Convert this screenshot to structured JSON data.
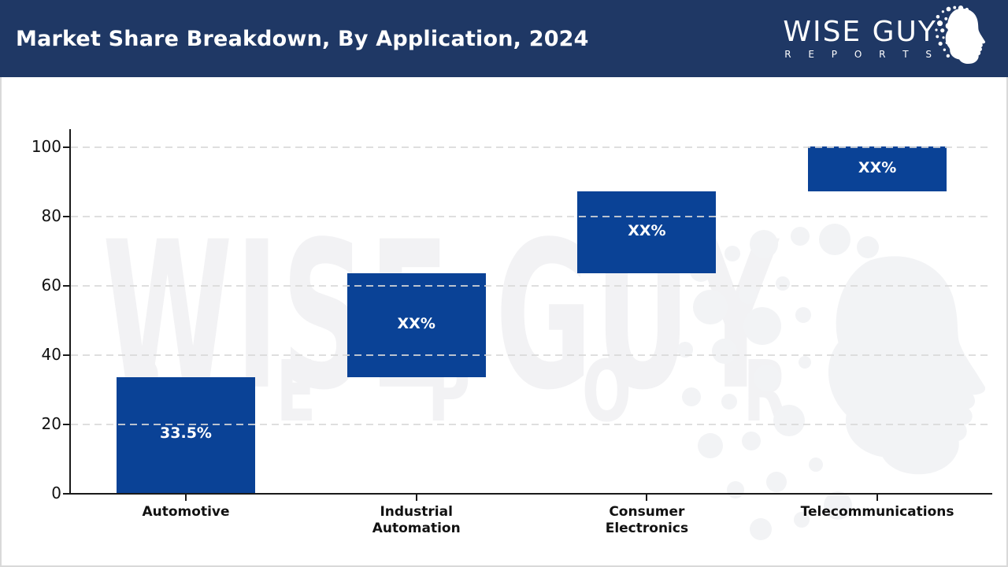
{
  "header": {
    "title": "Market Share Breakdown, By Application, 2024",
    "logo": {
      "brand": "WISE GUY",
      "sub": "R E P O R T S"
    }
  },
  "watermark": {
    "brand": "WISE GUY",
    "sub": "R E P O R T S"
  },
  "chart_data": {
    "type": "bar",
    "subtype": "waterfall",
    "title": "Market Share Breakdown, By Application, 2024",
    "categories": [
      "Automotive",
      "Industrial Automation",
      "Consumer Electronics",
      "Telecommunications"
    ],
    "categories_display": [
      "Automotive",
      "Industrial\nAutomation",
      "Consumer\nElectronics",
      "Telecommunications"
    ],
    "segments": [
      {
        "category": "Automotive",
        "start": 0,
        "end": 33.5,
        "label": "33.5%"
      },
      {
        "category": "Industrial Automation",
        "start": 33.5,
        "end": 63.5,
        "label": "XX%"
      },
      {
        "category": "Consumer Electronics",
        "start": 63.5,
        "end": 87,
        "label": "XX%"
      },
      {
        "category": "Telecommunications",
        "start": 87,
        "end": 100,
        "label": "XX%"
      }
    ],
    "xlabel": "",
    "ylabel": "",
    "ylim": [
      0,
      100
    ],
    "yticks": [
      0,
      20,
      40,
      60,
      80,
      100
    ],
    "grid": "dashed-horizontal",
    "legend": "none",
    "bar_color": "#0a4296",
    "bar_label_color": "#ffffff"
  },
  "colors": {
    "header_bg": "#1f3865",
    "bar": "#0a4296",
    "gridline": "#d9d9d9",
    "axis": "#1a1a1a",
    "watermark": "#f2f2f4",
    "page_bg": "#ffffff"
  }
}
